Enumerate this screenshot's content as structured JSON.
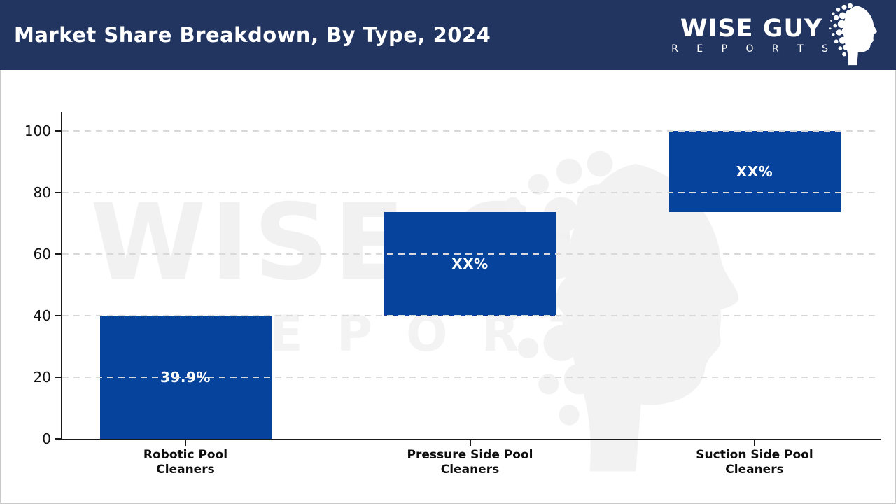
{
  "header": {
    "title": "Market Share Breakdown, By Type, 2024",
    "logo": {
      "line1": "WISE GUY",
      "line2": "R E P O R T S"
    }
  },
  "watermark": {
    "line1": "WISE GUY",
    "line2": "REPORTS"
  },
  "chart_data": {
    "type": "bar",
    "subtype": "waterfall-breakdown",
    "title": "Market Share Breakdown, By Type, 2024",
    "categories": [
      {
        "line1": "Robotic Pool",
        "line2": "Cleaners"
      },
      {
        "line1": "Pressure Side Pool",
        "line2": "Cleaners"
      },
      {
        "line1": "Suction Side Pool",
        "line2": "Cleaners"
      }
    ],
    "bars": [
      {
        "label": "39.9%",
        "base": 0,
        "top": 39.9
      },
      {
        "label": "XX%",
        "base": 39.9,
        "top": 73.6
      },
      {
        "label": "XX%",
        "base": 73.6,
        "top": 100
      }
    ],
    "y_ticks": [
      0,
      20,
      40,
      60,
      80,
      100
    ],
    "ylim": [
      0,
      105
    ],
    "grid": "dashed horizontal",
    "legend": false,
    "xlabel": "",
    "ylabel": ""
  },
  "colors": {
    "header_bg": "#213560",
    "bar": "#05439c",
    "gridline": "#d9d9d9",
    "axis": "#1a1a1a",
    "watermark": "#f1f1f1",
    "border": "#c9c9c9",
    "bar_label": "#ffffff"
  }
}
